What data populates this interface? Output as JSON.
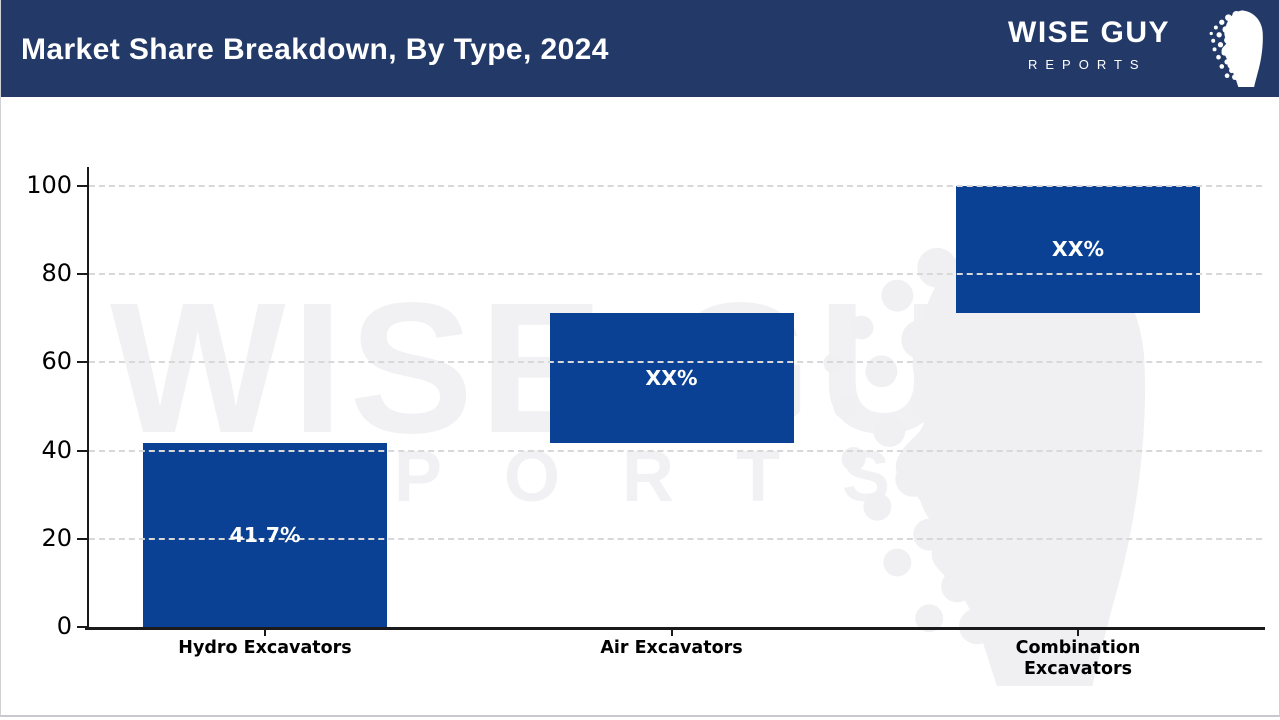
{
  "header": {
    "title": "Market Share Breakdown, By Type, 2024",
    "bg_color": "#233a69",
    "logo": {
      "line1": "WISE GUY",
      "line2": "REPORTS"
    }
  },
  "watermark": {
    "line1": "WISE GUY",
    "line2": "REPORTS"
  },
  "chart_data": {
    "type": "bar",
    "subtype": "floating-waterfall",
    "title": "Market Share Breakdown, By Type, 2024",
    "categories": [
      "Hydro Excavators",
      "Air Excavators",
      "Combination\nExcavators"
    ],
    "series": [
      {
        "name": "Market Share %",
        "segments": [
          {
            "category": "Hydro Excavators",
            "start": 0,
            "end": 41.7,
            "label": "41.7%"
          },
          {
            "category": "Air Excavators",
            "start": 41.7,
            "end": 71.3,
            "label": "XX%"
          },
          {
            "category": "Combination Excavators",
            "start": 71.3,
            "end": 100,
            "label": "XX%"
          }
        ]
      }
    ],
    "xlabel": "",
    "ylabel": "",
    "ylim": [
      0,
      104.3
    ],
    "yticks": [
      0,
      20,
      40,
      60,
      80,
      100
    ],
    "grid": "horizontal-dashed-over-bars",
    "bar_color": "#0b4194",
    "bar_label_color": "#ffffff",
    "gridline_color": "#d8d8d8",
    "axis_color": "#1a1a1a"
  }
}
